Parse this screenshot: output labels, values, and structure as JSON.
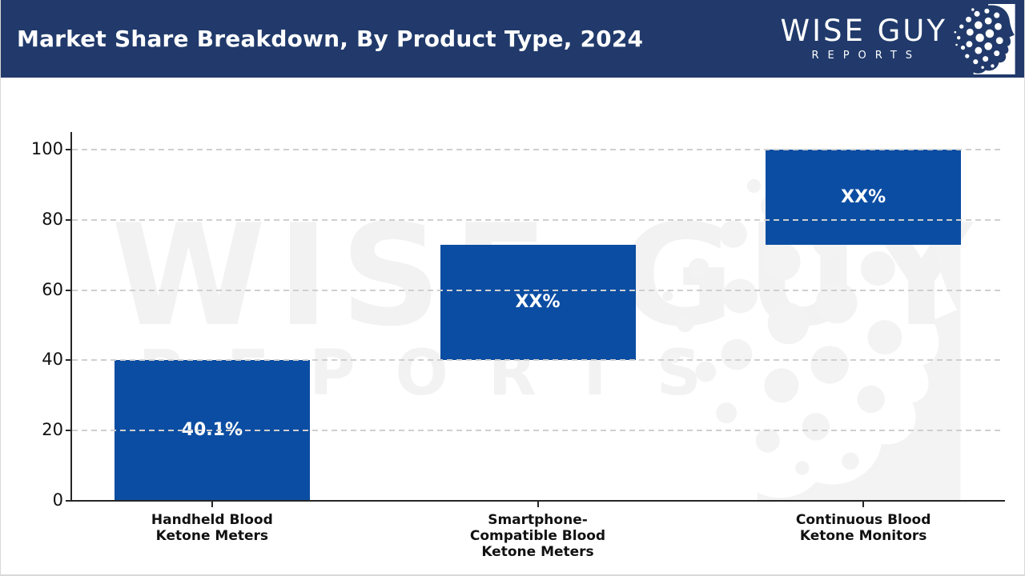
{
  "header": {
    "title": "Market Share Breakdown, By Product Type, 2024",
    "logo": {
      "line1": "WISE GUY",
      "line2": "REPORTS"
    }
  },
  "watermark": {
    "line1": "WISE GUY",
    "line2": "REPORTS"
  },
  "colors": {
    "header_bg": "#213a6b",
    "bar": "#0b4da2",
    "bar_label_text": "#ffffff",
    "axis": "#262626",
    "tick_text": "#111111",
    "gridline": "#cfcfcf",
    "watermark": "#f2f2f2",
    "title_text": "#ffffff"
  },
  "chart_data": {
    "type": "bar",
    "subtype": "waterfall",
    "title": "Market Share Breakdown, By Product Type, 2024",
    "xlabel": "",
    "ylabel": "",
    "ylim": [
      0,
      100
    ],
    "yticks": [
      0,
      20,
      40,
      60,
      80,
      100
    ],
    "grid": "horizontal-dashed-over-bars",
    "legend": "none",
    "bar_color": "#0b4da2",
    "categories": [
      "Handheld Blood Ketone Meters",
      "Smartphone-Compatible Blood Ketone Meters",
      "Continuous Blood Ketone Monitors"
    ],
    "category_lines": [
      [
        "Handheld Blood",
        "Ketone Meters"
      ],
      [
        "Smartphone-",
        "Compatible Blood",
        "Ketone Meters"
      ],
      [
        "Continuous Blood",
        "Ketone Monitors"
      ]
    ],
    "segments": [
      {
        "category": "Handheld Blood Ketone Meters",
        "label": "40.1%",
        "start": 0,
        "end": 40.1,
        "value": 40.1
      },
      {
        "category": "Smartphone-Compatible Blood Ketone Meters",
        "label": "XX%",
        "start": 40.1,
        "end": 72.9,
        "value": 32.8
      },
      {
        "category": "Continuous Blood Ketone Monitors",
        "label": "XX%",
        "start": 72.9,
        "end": 100,
        "value": 27.1
      }
    ]
  }
}
